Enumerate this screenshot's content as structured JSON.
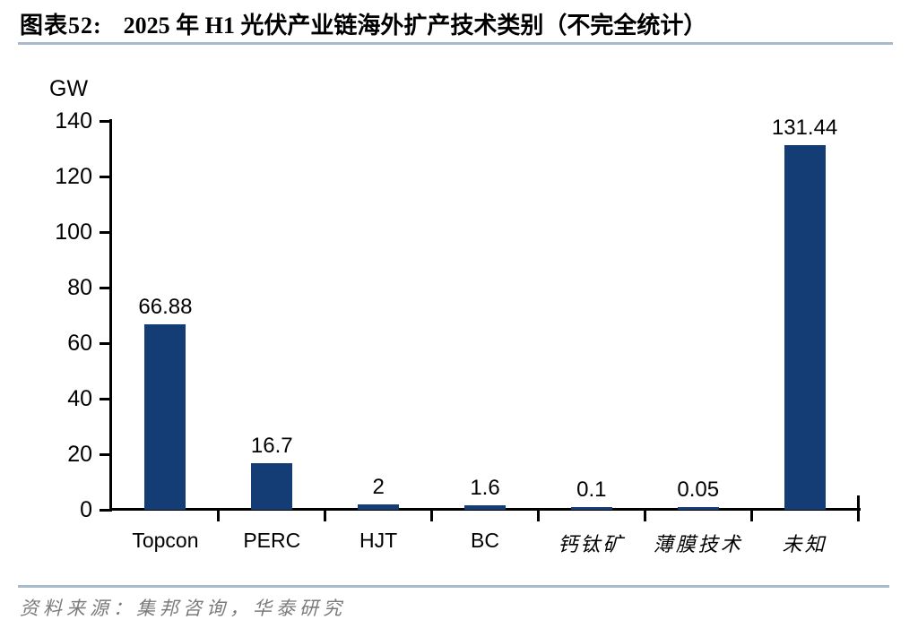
{
  "figure": {
    "tag": "图表52:",
    "title": "2025 年 H1 光伏产业链海外扩产技术类别（不完全统计）",
    "source_label": "资料来源：集邦咨询，华泰研究"
  },
  "chart_data": {
    "type": "bar",
    "title": "2025 年 H1 光伏产业链海外扩产技术类别（不完全统计）",
    "unit_label": "GW",
    "categories": [
      "Topcon",
      "PERC",
      "HJT",
      "BC",
      "钙钛矿",
      "薄膜技术",
      "未知"
    ],
    "values": [
      66.88,
      16.7,
      2,
      1.6,
      0.1,
      0.05,
      131.44
    ],
    "value_labels": [
      "66.88",
      "16.7",
      "2",
      "1.6",
      "0.1",
      "0.05",
      "131.44"
    ],
    "xlabel": "",
    "ylabel": "GW",
    "ylim": [
      0,
      140
    ],
    "ytick_step": 20,
    "bar_color": "#143d76",
    "grid": false,
    "legend": false
  }
}
